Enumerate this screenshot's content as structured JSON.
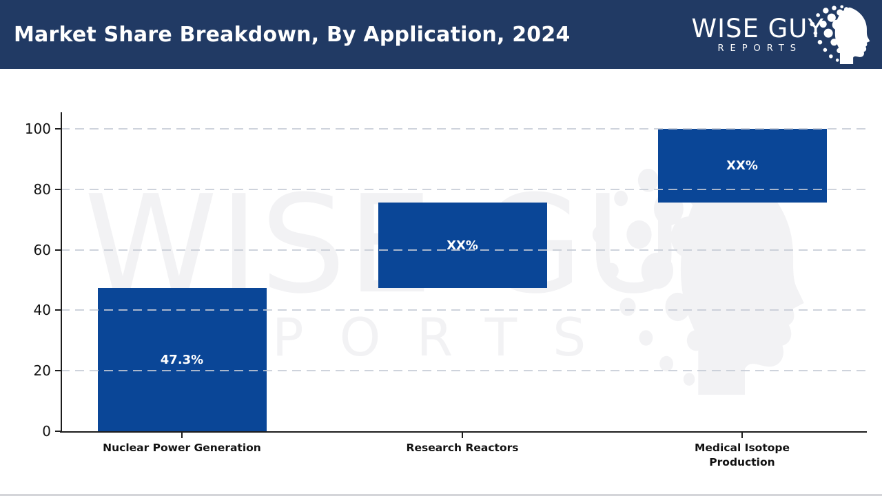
{
  "header": {
    "title": "Market Share Breakdown, By Application, 2024",
    "bg_color": "#213a64",
    "logo": {
      "line1": "WISE GUY",
      "line2": "REPORTS"
    }
  },
  "watermark": {
    "line1": "WISE GUY",
    "line2": "REPORTS"
  },
  "chart_data": {
    "type": "bar",
    "variant": "waterfall-stacked-to-100",
    "title": "Market Share Breakdown, By Application, 2024",
    "categories": [
      "Nuclear Power Generation",
      "Research Reactors",
      "Medical Isotope Production"
    ],
    "segments": [
      {
        "category": "Nuclear Power Generation",
        "label": "47.3%",
        "start": 0,
        "end": 47.3
      },
      {
        "category": "Research Reactors",
        "label": "XX%",
        "start": 47.3,
        "end": 75.7
      },
      {
        "category": "Medical Isotope Production",
        "label": "XX%",
        "start": 75.7,
        "end": 100
      }
    ],
    "xlabel": "",
    "ylabel": "",
    "yticks": [
      0,
      20,
      40,
      60,
      80,
      100
    ],
    "ylim": [
      0,
      105
    ],
    "grid": "horizontal-dashed",
    "legend": "none",
    "bar_color": "#0a4697",
    "bar_label_color": "#ffffff",
    "axis_color": "#1c1c1c",
    "grid_color": "#c6cbd6",
    "tick_label_color": "#111111"
  }
}
